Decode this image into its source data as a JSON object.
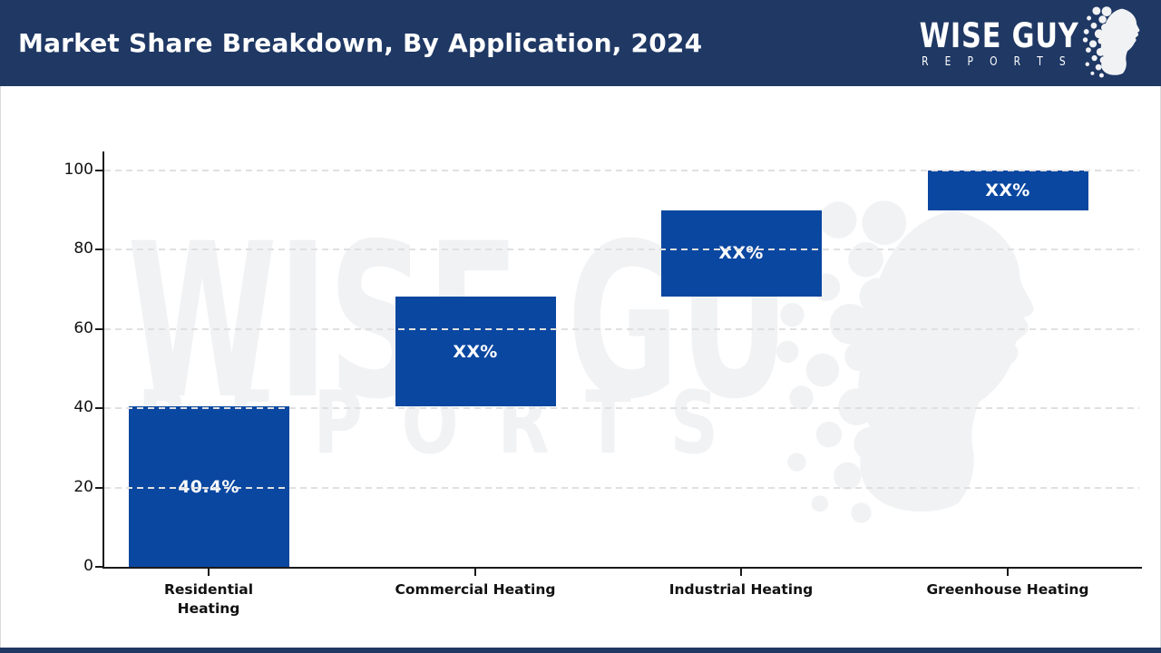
{
  "header": {
    "title": "Market Share Breakdown, By Application, 2024",
    "logo": {
      "line1": "WISE GUY",
      "line2": "R E P O R T S"
    }
  },
  "watermark": {
    "line1": "WISE GU",
    "line2": "REPORTS"
  },
  "colors": {
    "header_bg": "#1f3864",
    "bar_fill": "#0a47a0",
    "grid": "#e0e0e0",
    "watermark": "#f1f2f4",
    "axis": "#1a1a1a",
    "footer_stripe": "#1f3864"
  },
  "chart_data": {
    "type": "bar",
    "subtype": "waterfall",
    "title": "Market Share Breakdown, By Application, 2024",
    "categories": [
      "Residential Heating",
      "Commercial Heating",
      "Industrial Heating",
      "Greenhouse Heating"
    ],
    "categories_display": [
      "Residential\nHeating",
      "Commercial Heating",
      "Industrial Heating",
      "Greenhouse Heating"
    ],
    "segments": [
      {
        "start": 0,
        "end": 40.4,
        "label": "40.4%"
      },
      {
        "start": 40.4,
        "end": 68.1,
        "label": "XX%"
      },
      {
        "start": 68.1,
        "end": 89.9,
        "label": "XX%"
      },
      {
        "start": 89.9,
        "end": 100,
        "label": "XX%"
      }
    ],
    "values": [
      40.4,
      27.7,
      21.8,
      10.1
    ],
    "bar_labels": [
      "40.4%",
      "XX%",
      "XX%",
      "XX%"
    ],
    "xlabel": "",
    "ylabel": "",
    "ylim": [
      0,
      100
    ],
    "yticks": [
      0,
      20,
      40,
      60,
      80,
      100
    ],
    "grid": "dashed-horizontal",
    "legend": "none"
  }
}
